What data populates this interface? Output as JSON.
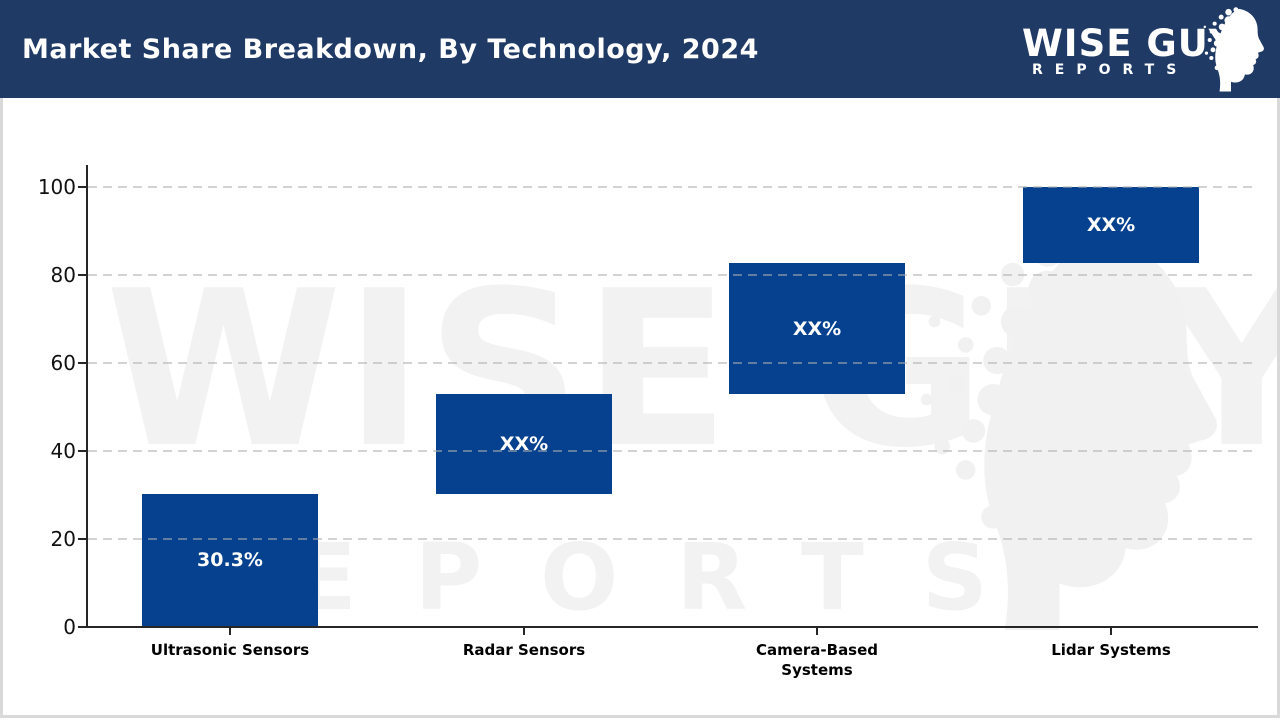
{
  "header": {
    "title": "Market Share Breakdown, By Technology, 2024",
    "brand_line1": "WISE GUY",
    "brand_line2": "REPORTS"
  },
  "watermark": {
    "line1": "WISE GUY",
    "line2": "REPORTS"
  },
  "chart_data": {
    "type": "bar",
    "subtype": "waterfall",
    "title": "Market Share Breakdown, By Technology, 2024",
    "categories": [
      "Ultrasonic Sensors",
      "Radar Sensors",
      "Camera-Based\nSystems",
      "Lidar Systems"
    ],
    "segments": [
      {
        "category": "Ultrasonic Sensors",
        "start": 0,
        "end": 30.3,
        "label": "30.3%"
      },
      {
        "category": "Radar Sensors",
        "start": 30.3,
        "end": 52.9,
        "label": "XX%"
      },
      {
        "category": "Camera-Based Systems",
        "start": 52.9,
        "end": 82.7,
        "label": "XX%"
      },
      {
        "category": "Lidar Systems",
        "start": 82.7,
        "end": 100,
        "label": "XX%"
      }
    ],
    "yticks": [
      0,
      20,
      40,
      60,
      80,
      100
    ],
    "ylim": [
      0,
      105
    ],
    "xlabel": "",
    "ylabel": "",
    "grid": "dashed horizontal, drawn above bars",
    "legend": "none"
  },
  "colors": {
    "header_bg": "#203a66",
    "bar": "#05418f",
    "bar_label": "#ffffff",
    "axis": "#262626",
    "grid": "#d9d9d9",
    "watermark": "#f2f2f2",
    "frame_border": "#d9d9d9",
    "page_bg": "#ffffff"
  }
}
